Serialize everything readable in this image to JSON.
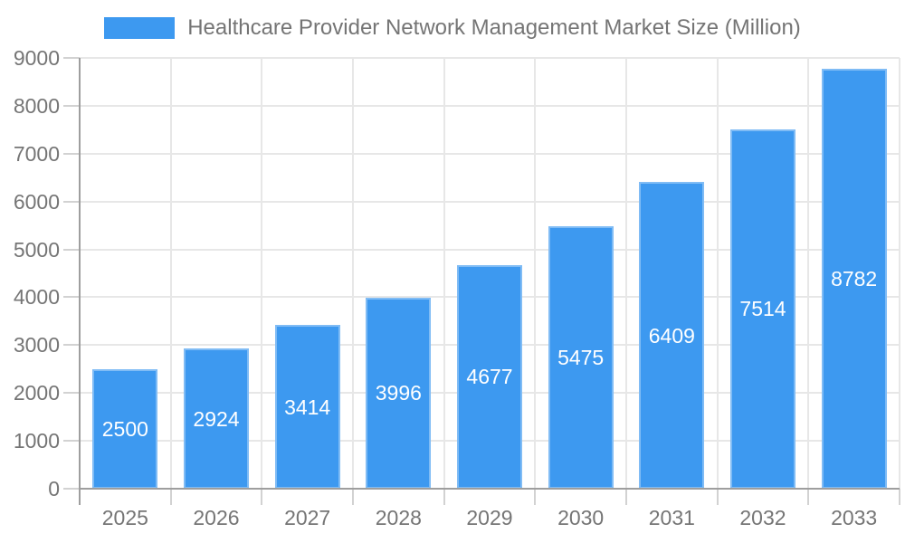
{
  "legend": {
    "label": "Healthcare Provider Network Management Market Size (Million)"
  },
  "chart_data": {
    "type": "bar",
    "title": "Healthcare Provider Network Management Market Size (Million)",
    "categories": [
      "2025",
      "2026",
      "2027",
      "2028",
      "2029",
      "2030",
      "2031",
      "2032",
      "2033"
    ],
    "values": [
      2500,
      2924,
      3414,
      3996,
      4677,
      5475,
      6409,
      7514,
      8782
    ],
    "value_labels": [
      "2500",
      "2924",
      "3414",
      "3996",
      "4677",
      "5475",
      "6409",
      "7514",
      "8782"
    ],
    "xlabel": "",
    "ylabel": "",
    "ylim": [
      0,
      9000
    ],
    "y_tick_step": 1000,
    "y_tick_labels": [
      "0",
      "1000",
      "2000",
      "3000",
      "4000",
      "5000",
      "6000",
      "7000",
      "8000",
      "9000"
    ],
    "grid": true,
    "legend_position": "top-center",
    "colors": {
      "bar": "#3D99F0",
      "value_label": "#FFFFFF",
      "axis_text": "#757575",
      "legend_text": "#757575",
      "gridline": "#E7E7E7",
      "tick": "#D2D2D2",
      "axis_line": "#9E9E9E",
      "background": "#FFFFFF"
    }
  }
}
